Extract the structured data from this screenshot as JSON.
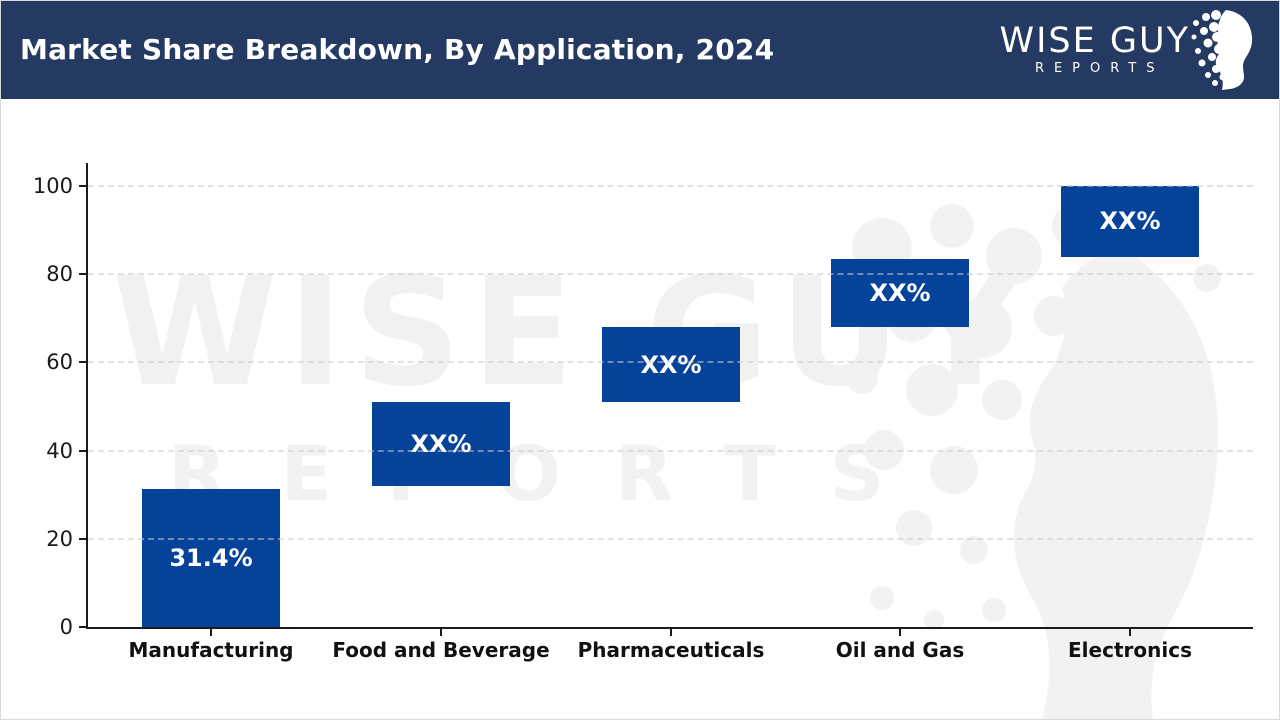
{
  "header": {
    "title": "Market Share Breakdown, By Application, 2024",
    "logo": {
      "line1": "WISE GUY",
      "line2": "REPORTS",
      "icon": "head-profile-dots-icon"
    }
  },
  "watermark": {
    "line1": "WISE GUY",
    "line2": "REPORTS"
  },
  "colors": {
    "header_navy": "#253a62",
    "bar_blue": "#05429a",
    "gridline_gray": "#d9d9d9",
    "watermark_gray": "#f1f1f1",
    "axis_black": "#1a1a1a",
    "value_label_white": "#ffffff"
  },
  "chart_data": {
    "type": "bar",
    "subtype": "waterfall",
    "title": "Market Share Breakdown, By Application, 2024",
    "categories": [
      "Manufacturing",
      "Food and Beverage",
      "Pharmaceuticals",
      "Oil and Gas",
      "Electronics"
    ],
    "segments": [
      {
        "category": "Manufacturing",
        "start": 0,
        "end": 31.4,
        "label": "31.4%"
      },
      {
        "category": "Food and Beverage",
        "start": 32,
        "end": 51,
        "label": "XX%"
      },
      {
        "category": "Pharmaceuticals",
        "start": 51,
        "end": 68,
        "label": "XX%"
      },
      {
        "category": "Oil and Gas",
        "start": 68,
        "end": 83.5,
        "label": "XX%"
      },
      {
        "category": "Electronics",
        "start": 84,
        "end": 100,
        "label": "XX%"
      }
    ],
    "ylim": [
      0,
      100
    ],
    "yticks": [
      0,
      20,
      40,
      60,
      80,
      100
    ],
    "xlabel": "",
    "ylabel": "",
    "grid": "horizontal dashed, drawn over bars",
    "legend": "none",
    "bar_color": "#05429a",
    "value_label_color": "#ffffff"
  }
}
